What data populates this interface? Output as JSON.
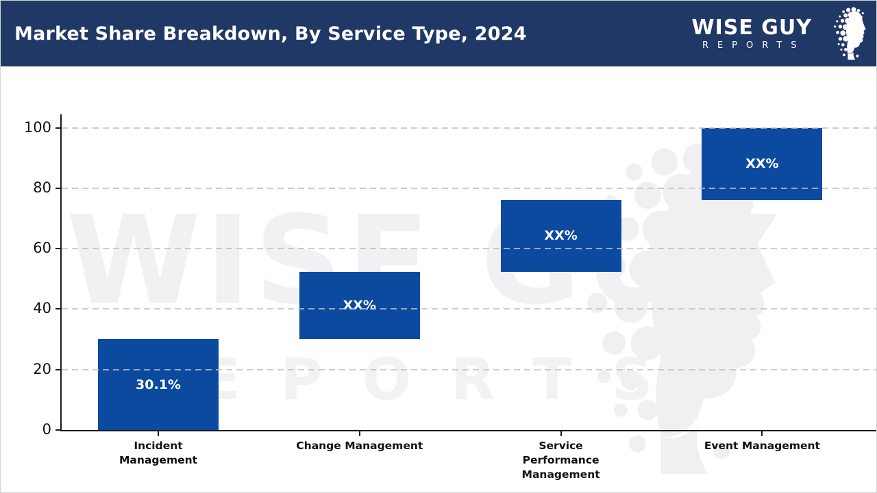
{
  "header": {
    "title": "Market Share Breakdown, By Service Type, 2024",
    "bg_color": "#1f3866",
    "logo": {
      "line1": "WISE GUY",
      "line2": "REPORTS"
    }
  },
  "watermark": {
    "line1": "WISE GUY",
    "line2": "REPORTS"
  },
  "chart_data": {
    "type": "bar",
    "subtype": "waterfall",
    "title": "Market Share Breakdown, By Service Type, 2024",
    "categories": [
      "Incident Management",
      "Change Management",
      "Service Performance Management",
      "Event Management"
    ],
    "tick_label_lines": [
      [
        "Incident",
        "Management"
      ],
      [
        "Change Management"
      ],
      [
        "Service",
        "Performance",
        "Management"
      ],
      [
        "Event Management"
      ]
    ],
    "segments": [
      {
        "start": 0,
        "end": 30.1,
        "label": "30.1%"
      },
      {
        "start": 30.1,
        "end": 52.3,
        "label": "XX%"
      },
      {
        "start": 52.3,
        "end": 76.2,
        "label": "XX%"
      },
      {
        "start": 76.2,
        "end": 100,
        "label": "XX%"
      }
    ],
    "values": [
      30.1,
      22.2,
      23.9,
      23.8
    ],
    "bar_labels": [
      "30.1%",
      "XX%",
      "XX%",
      "XX%"
    ],
    "ylim": [
      0,
      100
    ],
    "yticks": [
      0,
      20,
      40,
      60,
      80,
      100
    ],
    "xlabel": "",
    "ylabel": "",
    "grid": "horizontal-dashed",
    "legend": "none",
    "bar_color": "#0b4a9f",
    "axis_color": "#1a1a1a",
    "grid_color": "#d9d9d9"
  }
}
